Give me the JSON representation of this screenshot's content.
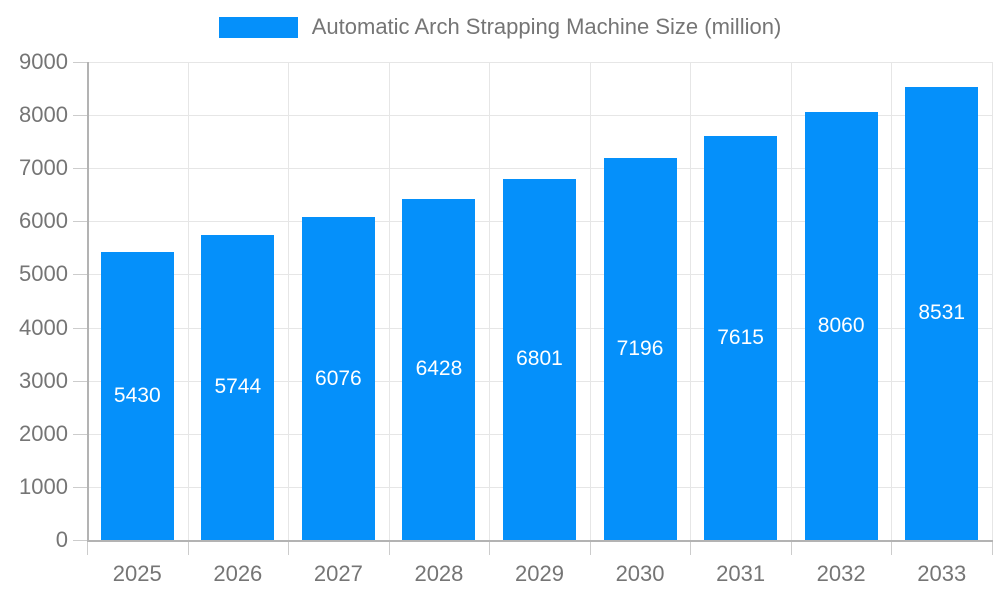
{
  "chart_data": {
    "type": "bar",
    "title": "Automatic Arch Strapping Machine Size (million)",
    "legend_position": "top",
    "categories": [
      "2025",
      "2026",
      "2027",
      "2028",
      "2029",
      "2030",
      "2031",
      "2032",
      "2033"
    ],
    "series": [
      {
        "name": "Automatic Arch Strapping Machine Size (million)",
        "values": [
          5430,
          5744,
          6076,
          6428,
          6801,
          7196,
          7615,
          8060,
          8531
        ]
      }
    ],
    "xlabel": "",
    "ylabel": "",
    "ylim": [
      0,
      9000
    ],
    "y_tick_step": 1000,
    "y_tick_labels": [
      "0",
      "1000",
      "2000",
      "3000",
      "4000",
      "5000",
      "6000",
      "7000",
      "8000",
      "9000"
    ],
    "grid": true,
    "data_labels": "inside-center",
    "colors": {
      "bar": "#0590FA",
      "bar_label": "#FFFFFF",
      "axis_label": "#757575",
      "gridline": "#E6E6E6",
      "tick": "#CCCCCC",
      "axis_line": "#B3B3B3",
      "background": "#FFFFFF"
    }
  }
}
